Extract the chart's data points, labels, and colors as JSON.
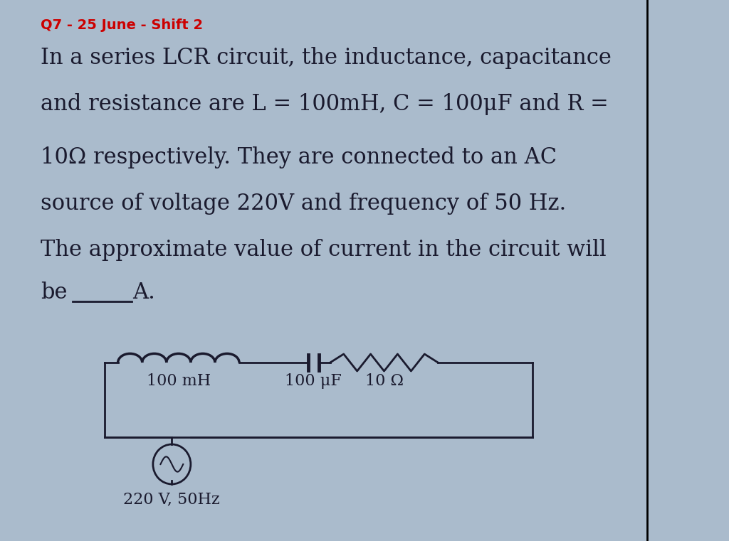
{
  "title": "Q7 - 25 June - Shift 2",
  "title_color": "#cc0000",
  "bg_color": "#aabbcc",
  "text_color": "#1a1a2e",
  "question_lines": [
    "In a series LCR circuit, the inductance, capacitance",
    "and resistance are L = 100mH, C = 100μF and R =",
    "10Ω respectively. They are connected to an AC",
    "source of voltage 220V and frequency of 50 Hz.",
    "The approximate value of current in the circuit will",
    "be_____A."
  ],
  "circuit": {
    "inductor_label": "100 mH",
    "capacitor_label": "100 μF",
    "resistor_label": "10 Ω",
    "source_label": "220 V, 50Hz"
  },
  "font_size_title": 14,
  "font_size_question": 22,
  "font_size_circuit": 16
}
